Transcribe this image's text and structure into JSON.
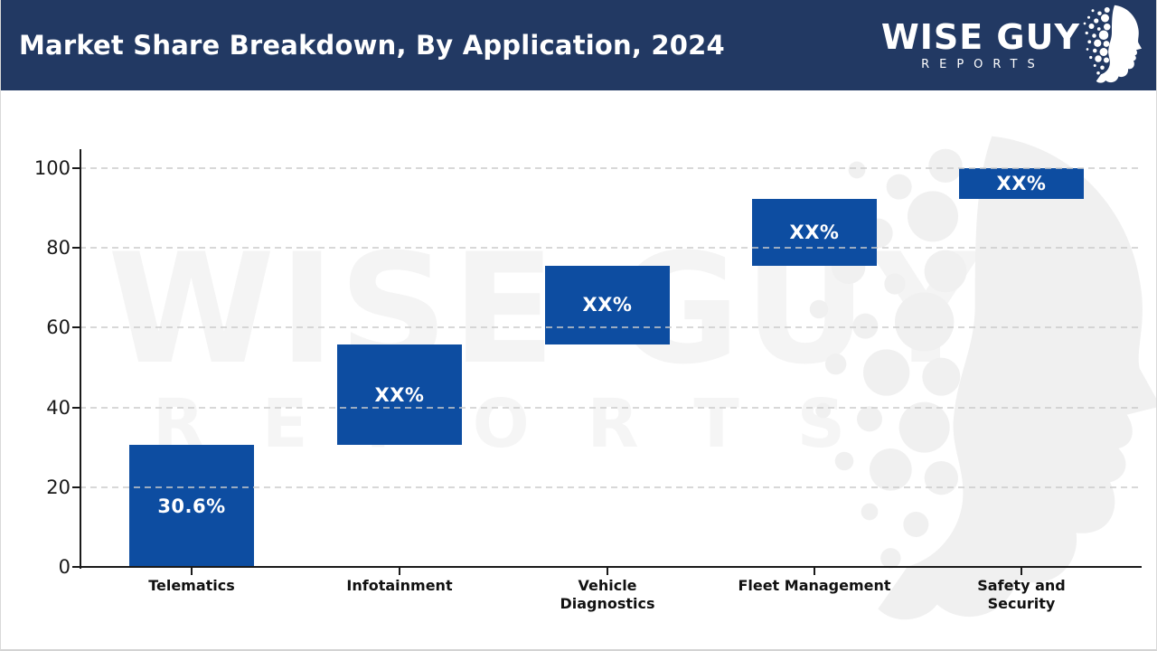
{
  "header": {
    "title": "Market Share Breakdown, By Application, 2024",
    "background_color": "#223963",
    "logo": {
      "wordmark": "WISE GUY",
      "subtext": "REPORTS",
      "head_icon": "dotted-profile-head"
    }
  },
  "watermark": {
    "wordmark": "WISE GUY",
    "subtext": "REPORTS",
    "head_icon": "dotted-profile-head"
  },
  "chart_data": {
    "type": "bar",
    "variant": "waterfall-stepped-percentage",
    "title": "Market Share Breakdown, By Application, 2024",
    "xlabel": "",
    "ylabel": "",
    "y_ticks": [
      0,
      20,
      40,
      60,
      80,
      100
    ],
    "ylim": [
      0,
      105
    ],
    "grid": "horizontal-dashed",
    "legend": "none",
    "bar_color": "#0d4da1",
    "bar_label_color": "#ffffff",
    "axis_color": "#1a1a1a",
    "categories": [
      "Telematics",
      "Infotainment",
      "Vehicle Diagnostics",
      "Fleet Management",
      "Safety and Security"
    ],
    "category_label_lines": [
      [
        "Telematics"
      ],
      [
        "Infotainment"
      ],
      [
        "Vehicle",
        "Diagnostics"
      ],
      [
        "Fleet Management"
      ],
      [
        "Safety and",
        "Security"
      ]
    ],
    "segments": [
      {
        "category": "Telematics",
        "label": "30.6%",
        "start": 0,
        "end": 30.6
      },
      {
        "category": "Infotainment",
        "label": "XX%",
        "start": 30.6,
        "end": 55.7
      },
      {
        "category": "Vehicle Diagnostics",
        "label": "XX%",
        "start": 55.7,
        "end": 75.6
      },
      {
        "category": "Fleet Management",
        "label": "XX%",
        "start": 75.6,
        "end": 92.4
      },
      {
        "category": "Safety and Security",
        "label": "XX%",
        "start": 92.4,
        "end": 100
      }
    ]
  }
}
